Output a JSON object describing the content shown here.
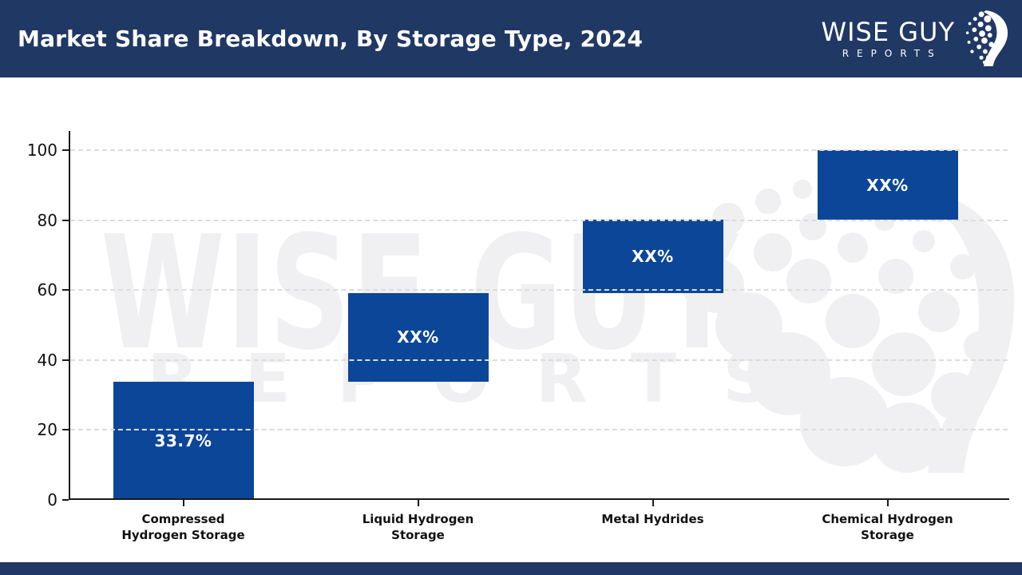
{
  "header": {
    "title": "Market Share Breakdown, By Storage Type, 2024"
  },
  "logo": {
    "name_line": "WISE GUY",
    "sub_line": "REPORTS"
  },
  "watermark": {
    "name_line": "WISE GUY",
    "sub_line": "REPORTS"
  },
  "colors": {
    "header_bg": "#203864",
    "footer_bg": "#203864",
    "bar": "#0c4699",
    "bar_label": "#ffffff",
    "grid": "#dcdcdc",
    "axis": "#1a1a1a",
    "watermark": "#f0f0f2"
  },
  "chart_data": {
    "type": "bar",
    "subtype": "waterfall",
    "title": "Market Share Breakdown, By Storage Type, 2024",
    "categories": [
      [
        "Compressed",
        "Hydrogen Storage"
      ],
      [
        "Liquid Hydrogen",
        "Storage"
      ],
      [
        "Metal Hydrides"
      ],
      [
        "Chemical Hydrogen",
        "Storage"
      ]
    ],
    "segments": [
      {
        "start": 0,
        "end": 33.7,
        "label": "33.7%"
      },
      {
        "start": 33.7,
        "end": 59.2,
        "label": "XX%"
      },
      {
        "start": 59.2,
        "end": 80.2,
        "label": "XX%"
      },
      {
        "start": 80.2,
        "end": 100,
        "label": "XX%"
      }
    ],
    "ylim": [
      0,
      100
    ],
    "yticks": [
      0,
      20,
      40,
      60,
      80,
      100
    ],
    "grid": true,
    "legend_position": "none",
    "xlabel": "",
    "ylabel": ""
  }
}
